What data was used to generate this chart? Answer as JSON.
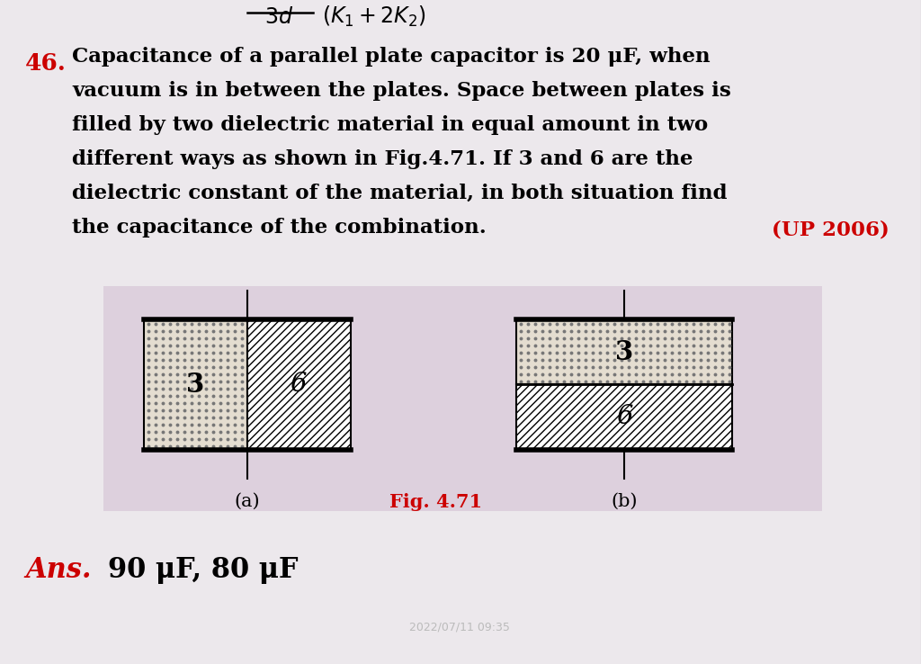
{
  "bg_color": "#e8e4e8",
  "fig_area_color": "#ddd0dd",
  "question_text_lines": [
    "Capacitance of a parallel plate capacitor is 20 μF, when",
    "vacuum is in between the plates. Space between plates is",
    "filled by two dielectric material in equal amount in two",
    "different ways as shown in Fig.4.71. If 3 and 6 are the",
    "dielectric constant of the material, in both situation find",
    "the capacitance of the combination."
  ],
  "up_year": "(UP 2006)",
  "up_color": "#cc0000",
  "ans_label": "Ans.",
  "ans_color": "#cc0000",
  "ans_text": "90 μF, 80 μF",
  "fig_label": "Fig. 4.71",
  "fig_label_color": "#cc0000",
  "label_a": "(a)",
  "label_b": "(b)",
  "dot_color": "#999999",
  "hatch_color": "#000000",
  "plate_color": "#000000",
  "diag_fill_dot": "#e8ddd0",
  "diag_fill_hatch": "#ffffff",
  "timestamp": "2022/07/11 09:35"
}
